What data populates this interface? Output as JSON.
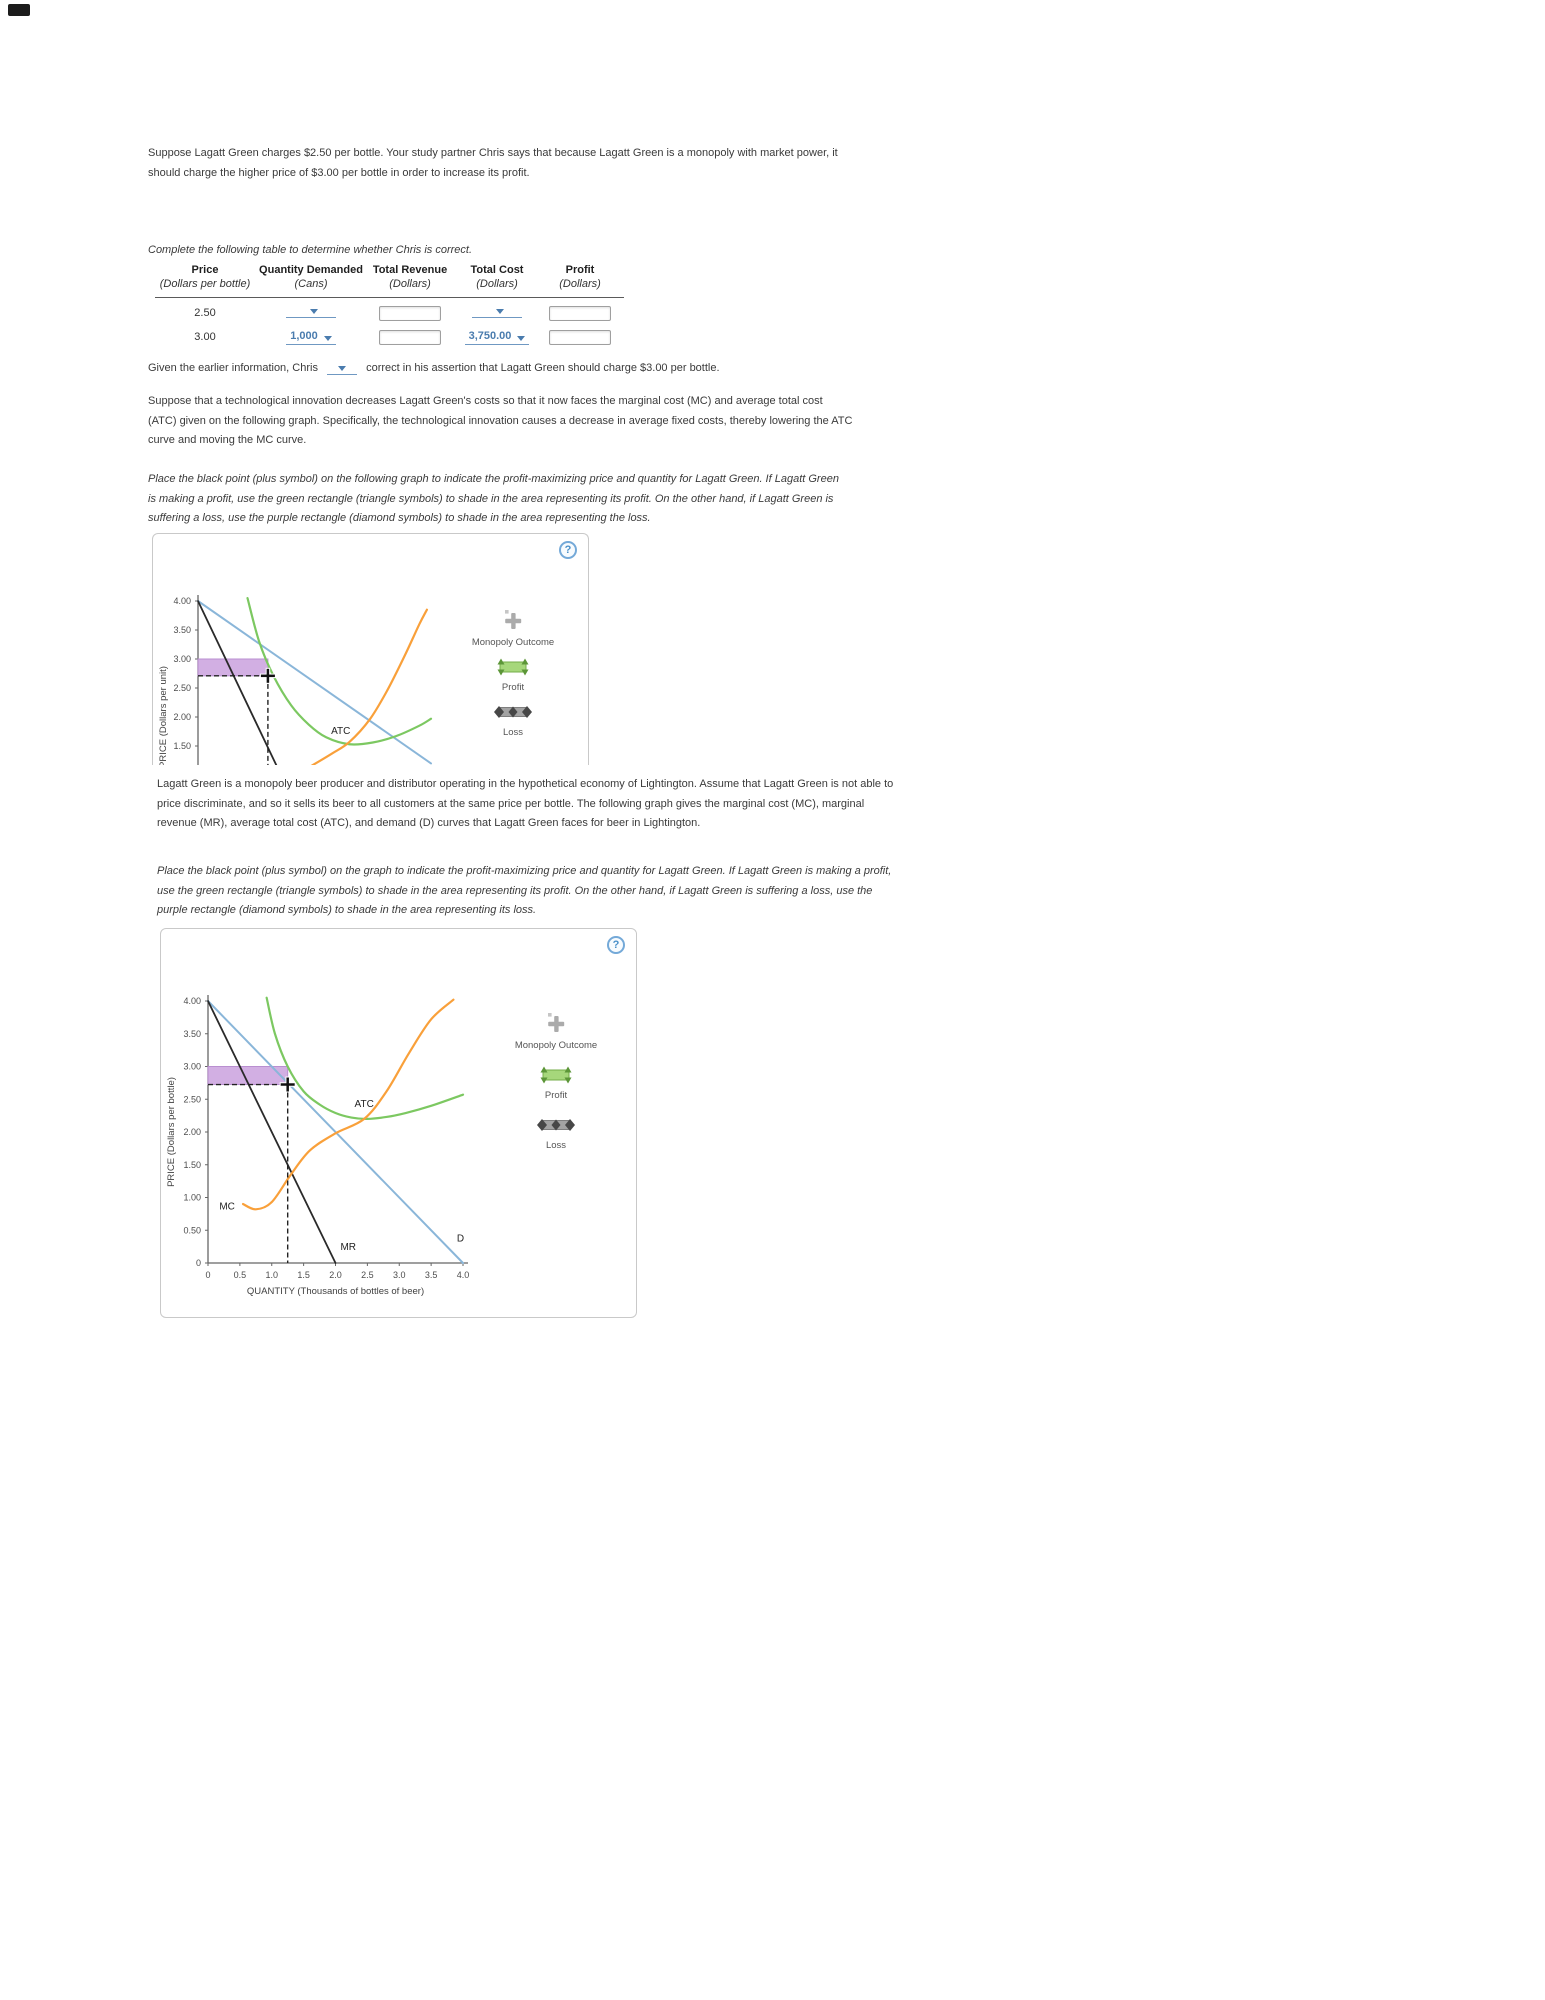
{
  "help_label": "?",
  "colors": {
    "demand_blue": "#8ab6d9",
    "mr_black": "#2a2a2a",
    "atc_green": "#7cc861",
    "mc_orange": "#f9a03a",
    "loss_purple": "#cda6e0",
    "loss_purple_border": "#b98fd0",
    "profit_green": "#a6d77b",
    "profit_green_dark": "#5c9638",
    "loss_gray": "#a3a3a3",
    "loss_gray_dark": "#474747",
    "legend_plus_gray": "#ababab",
    "link_blue": "#4a7cae",
    "axis_gray": "#666666"
  },
  "intro_paragraph": "Suppose Lagatt Green charges $2.50 per bottle. Your study partner Chris says that because Lagatt Green is a monopoly with market power, it should charge the higher price of $3.00 per bottle in order to increase its profit.",
  "table_instruction": "Complete the following table to determine whether Chris is correct.",
  "table": {
    "headers": [
      {
        "line1": "Price",
        "line2": "(Dollars per bottle)"
      },
      {
        "line1": "Quantity Demanded",
        "line2": "(Cans)"
      },
      {
        "line1": "Total Revenue",
        "line2": "(Dollars)"
      },
      {
        "line1": "Total Cost",
        "line2": "(Dollars)"
      },
      {
        "line1": "Profit",
        "line2": "(Dollars)"
      }
    ],
    "rows": [
      {
        "price": "2.50",
        "quantity": "",
        "revenue": "",
        "cost": "",
        "profit": ""
      },
      {
        "price": "3.00",
        "quantity": "1,000",
        "revenue": "",
        "cost": "3,750.00",
        "profit": ""
      }
    ]
  },
  "chris_statement": {
    "before": "Given the earlier information, Chris",
    "after": "correct in his assertion that Lagatt Green should charge $3.00 per bottle."
  },
  "innovation_paragraph": "Suppose that a technological innovation decreases Lagatt Green's costs so that it now faces the marginal cost (MC) and average total cost (ATC) given on the following graph. Specifically, the technological innovation causes a decrease in average fixed costs, thereby lowering the ATC curve and moving the MC curve.",
  "placement_instruction_1": "Place the black point (plus symbol) on the following graph to indicate the profit-maximizing price and quantity for Lagatt Green. If Lagatt Green is making a profit, use the green rectangle (triangle symbols) to shade in the area representing its profit. On the other hand, if Lagatt Green is suffering a loss, use the purple rectangle (diamond symbols) to shade in the area representing the loss.",
  "monopoly_paragraph": "Lagatt Green is a monopoly beer producer and distributor operating in the hypothetical economy of Lightington. Assume that Lagatt Green is not able to price discriminate, and so it sells its beer to all customers at the same price per bottle. The following graph gives the marginal cost (MC), marginal revenue (MR), average total cost (ATC), and demand (D) curves that Lagatt Green faces for beer in Lightington.",
  "placement_instruction_2": "Place the black point (plus symbol) on the graph to indicate the profit-maximizing price and quantity for Lagatt Green. If Lagatt Green is making a profit, use the green rectangle (triangle symbols) to shade in the area representing its profit. On the other hand, if Lagatt Green is suffering a loss, use the purple rectangle (diamond symbols) to shade in the area representing its loss.",
  "legend": {
    "items": [
      {
        "key": "monopoly-outcome",
        "label": "Monopoly Outcome"
      },
      {
        "key": "profit",
        "label": "Profit"
      },
      {
        "key": "loss",
        "label": "Loss"
      }
    ]
  },
  "chart_data": [
    {
      "name": "post-innovation-graph",
      "type": "line",
      "title": "",
      "ylabel": "PRICE (Dollars per unit)",
      "xlabel": "",
      "x_domain": [
        0,
        4
      ],
      "y_domain": [
        0,
        4
      ],
      "y_tick_step": 0.5,
      "y_tick_labels": [
        "4.00",
        "3.50",
        "3.00",
        "2.50",
        "2.00",
        "1.50"
      ],
      "grid": false,
      "legend_position": "right",
      "series": [
        {
          "name": "D",
          "color_key": "demand_blue",
          "width": 2,
          "points": [
            [
              0,
              4.0
            ],
            [
              4.0,
              1.2
            ]
          ]
        },
        {
          "name": "MR",
          "color_key": "mr_black",
          "width": 1.8,
          "points": [
            [
              0,
              4.0
            ],
            [
              1.9,
              0
            ]
          ]
        },
        {
          "name": "ATC",
          "color_key": "atc_green",
          "width": 2.2,
          "smooth": true,
          "points": [
            [
              0.85,
              4.05
            ],
            [
              1.05,
              3.3
            ],
            [
              1.3,
              2.7
            ],
            [
              1.6,
              2.2
            ],
            [
              1.9,
              1.87
            ],
            [
              2.2,
              1.65
            ],
            [
              2.6,
              1.53
            ],
            [
              3.0,
              1.56
            ],
            [
              3.4,
              1.67
            ],
            [
              3.8,
              1.85
            ],
            [
              4.0,
              1.97
            ]
          ],
          "label": {
            "text": "ATC",
            "x": 2.45,
            "y": 1.71
          }
        },
        {
          "name": "MC",
          "color_key": "mc_orange",
          "width": 2.2,
          "smooth": true,
          "points": [
            [
              1.1,
              0.72
            ],
            [
              1.5,
              0.9
            ],
            [
              1.9,
              1.13
            ],
            [
              2.3,
              1.37
            ],
            [
              2.6,
              1.57
            ],
            [
              2.95,
              1.96
            ],
            [
              3.25,
              2.46
            ],
            [
              3.55,
              3.06
            ],
            [
              3.8,
              3.6
            ],
            [
              3.93,
              3.85
            ]
          ]
        }
      ],
      "annotations": {
        "loss_rect": {
          "q": [
            0,
            1.2
          ],
          "p": [
            2.71,
            3.0
          ]
        },
        "dashed_point": {
          "q": 1.2,
          "p": 2.71
        }
      }
    },
    {
      "name": "monopoly-graph",
      "type": "line",
      "title": "",
      "ylabel": "PRICE (Dollars per bottle)",
      "xlabel": "QUANTITY (Thousands of bottles of beer)",
      "x_domain": [
        0,
        4
      ],
      "y_domain": [
        0,
        4
      ],
      "y_tick_step": 0.5,
      "x_tick_step": 0.5,
      "y_tick_labels": [
        "4.00",
        "3.50",
        "3.00",
        "2.50",
        "2.00",
        "1.50",
        "1.00",
        "0.50",
        "0"
      ],
      "x_tick_labels": [
        "0",
        "0.5",
        "1.0",
        "1.5",
        "2.0",
        "2.5",
        "3.0",
        "3.5",
        "4.0"
      ],
      "grid": false,
      "legend_position": "right",
      "series": [
        {
          "name": "D",
          "color_key": "demand_blue",
          "width": 2,
          "points": [
            [
              0,
              4.0
            ],
            [
              4.0,
              0
            ]
          ],
          "label": {
            "text": "D",
            "x": 3.96,
            "y": 0.33
          }
        },
        {
          "name": "MR",
          "color_key": "mr_black",
          "width": 1.8,
          "points": [
            [
              0,
              4.0
            ],
            [
              2.0,
              0
            ]
          ],
          "label": {
            "text": "MR",
            "x": 2.2,
            "y": 0.2
          }
        },
        {
          "name": "ATC",
          "color_key": "atc_green",
          "width": 2.2,
          "smooth": true,
          "points": [
            [
              0.92,
              4.05
            ],
            [
              1.05,
              3.5
            ],
            [
              1.25,
              3.0
            ],
            [
              1.5,
              2.62
            ],
            [
              1.75,
              2.42
            ],
            [
              2.0,
              2.29
            ],
            [
              2.25,
              2.22
            ],
            [
              2.5,
              2.2
            ],
            [
              2.8,
              2.23
            ],
            [
              3.1,
              2.29
            ],
            [
              3.5,
              2.4
            ],
            [
              4.0,
              2.57
            ]
          ],
          "label": {
            "text": "ATC",
            "x": 2.45,
            "y": 2.38
          }
        },
        {
          "name": "MC",
          "color_key": "mc_orange",
          "width": 2.2,
          "smooth": true,
          "points": [
            [
              0.55,
              0.9
            ],
            [
              0.75,
              0.82
            ],
            [
              1.0,
              0.93
            ],
            [
              1.3,
              1.35
            ],
            [
              1.6,
              1.72
            ],
            [
              2.0,
              1.98
            ],
            [
              2.45,
              2.2
            ],
            [
              2.8,
              2.62
            ],
            [
              3.15,
              3.2
            ],
            [
              3.5,
              3.72
            ],
            [
              3.85,
              4.02
            ]
          ],
          "label": {
            "text": "MC",
            "x": 0.3,
            "y": 0.82
          }
        }
      ],
      "annotations": {
        "loss_rect": {
          "q": [
            0,
            1.25
          ],
          "p": [
            2.725,
            3.0
          ]
        },
        "dashed_point": {
          "q": 1.25,
          "p": 2.725
        }
      }
    }
  ]
}
